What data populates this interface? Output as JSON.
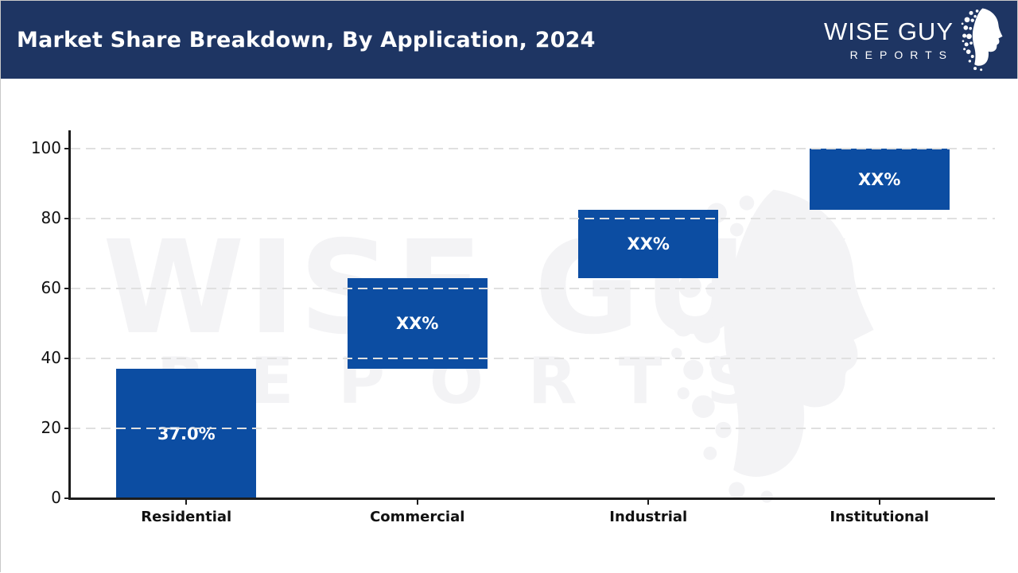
{
  "header": {
    "title": "Market Share Breakdown, By Application, 2024",
    "logo": {
      "line1": "WISE GUY",
      "line2": "REPORTS"
    }
  },
  "watermark": {
    "line1": "WISE GUY",
    "line2": "REPORTS"
  },
  "colors": {
    "header_bg": "#1e3563",
    "bar": "#0c4da2",
    "bar_label": "#ffffff",
    "grid": "#e0e0e0",
    "axis": "#1c1c1c",
    "watermark": "#f3f3f5"
  },
  "chart_data": {
    "type": "bar",
    "variant": "waterfall",
    "title": "Market Share Breakdown, By Application, 2024",
    "categories": [
      "Residential",
      "Commercial",
      "Industrial",
      "Institutional"
    ],
    "segments": [
      {
        "category": "Residential",
        "start": 0,
        "end": 37,
        "label": "37.0%"
      },
      {
        "category": "Commercial",
        "start": 37,
        "end": 63,
        "label": "XX%"
      },
      {
        "category": "Industrial",
        "start": 63,
        "end": 82.5,
        "label": "XX%"
      },
      {
        "category": "Institutional",
        "start": 82.5,
        "end": 100,
        "label": "XX%"
      }
    ],
    "ylim": [
      0,
      100
    ],
    "yticks": [
      0,
      20,
      40,
      60,
      80,
      100
    ],
    "xlabel": "",
    "ylabel": "",
    "grid": "horizontal-dashed",
    "legend": "none",
    "bar_color": "#0c4da2"
  }
}
